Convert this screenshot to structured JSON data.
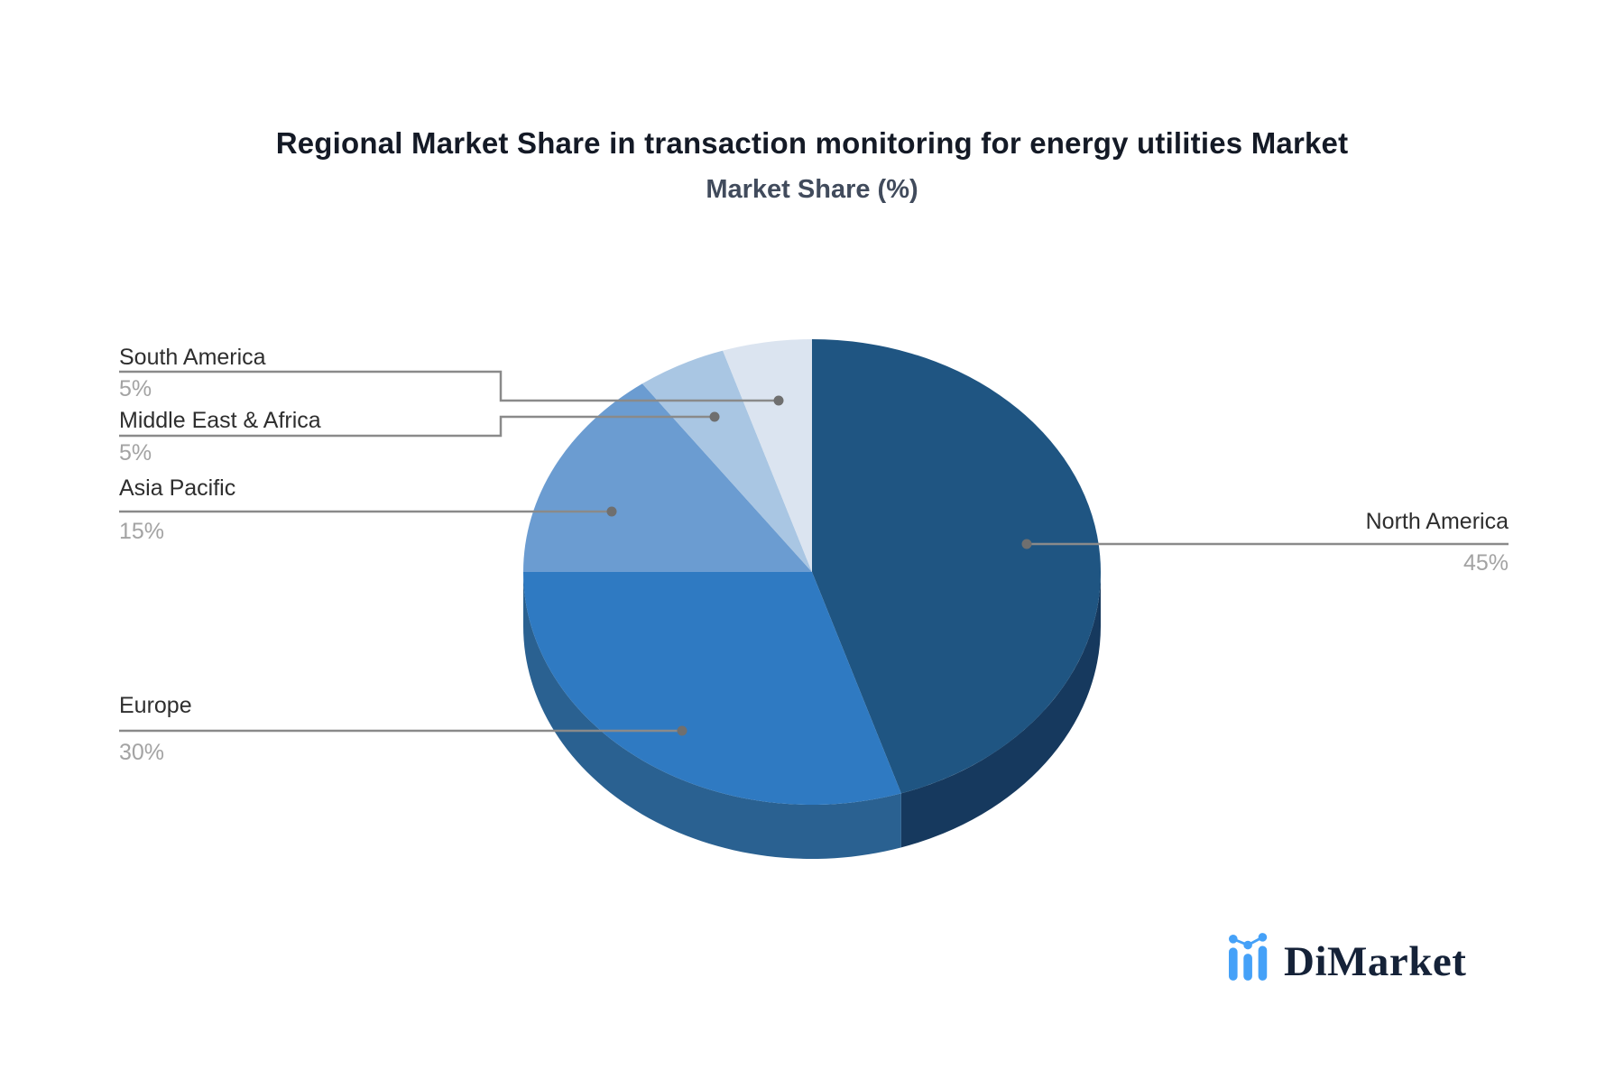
{
  "header": {
    "title": "Regional Market Share in transaction monitoring for energy utilities Market",
    "subtitle": "Market Share (%)"
  },
  "chart_data": {
    "type": "pie",
    "style": "3d-pie",
    "title": "Regional Market Share in transaction monitoring for energy utilities Market",
    "subtitle": "Market Share (%)",
    "unit": "%",
    "start_angle": "12-o'clock, clockwise",
    "categories": [
      "North America",
      "Europe",
      "Asia Pacific",
      "Middle East & Africa",
      "South America"
    ],
    "values": [
      45,
      30,
      15,
      5,
      5
    ],
    "value_labels": [
      "45%",
      "30%",
      "15%",
      "5%",
      "5%"
    ],
    "slice_colors": [
      "#1f5582",
      "#2f7ac2",
      "#6b9cd1",
      "#a9c6e3",
      "#dbe4f0"
    ],
    "rim_colors": [
      "#16395e",
      "#2a6191",
      "#5c8cbd",
      "#93b4d4",
      "#c4d2e2"
    ],
    "legend": "none, callout labels with leader lines"
  },
  "colors": {
    "leader_line": "#8a8a8a",
    "leader_dot": "#6f6f6f",
    "label_name_text": "#2e2e2e",
    "label_value_text": "#a3a3a3",
    "title_text": "#141a26",
    "subtitle_text": "#414b5c",
    "background": "#ffffff"
  },
  "brand": {
    "name": "DiMarket",
    "icon": "bar-chart-logo-icon",
    "icon_color": "#45a1f8",
    "text_color": "#152238"
  }
}
